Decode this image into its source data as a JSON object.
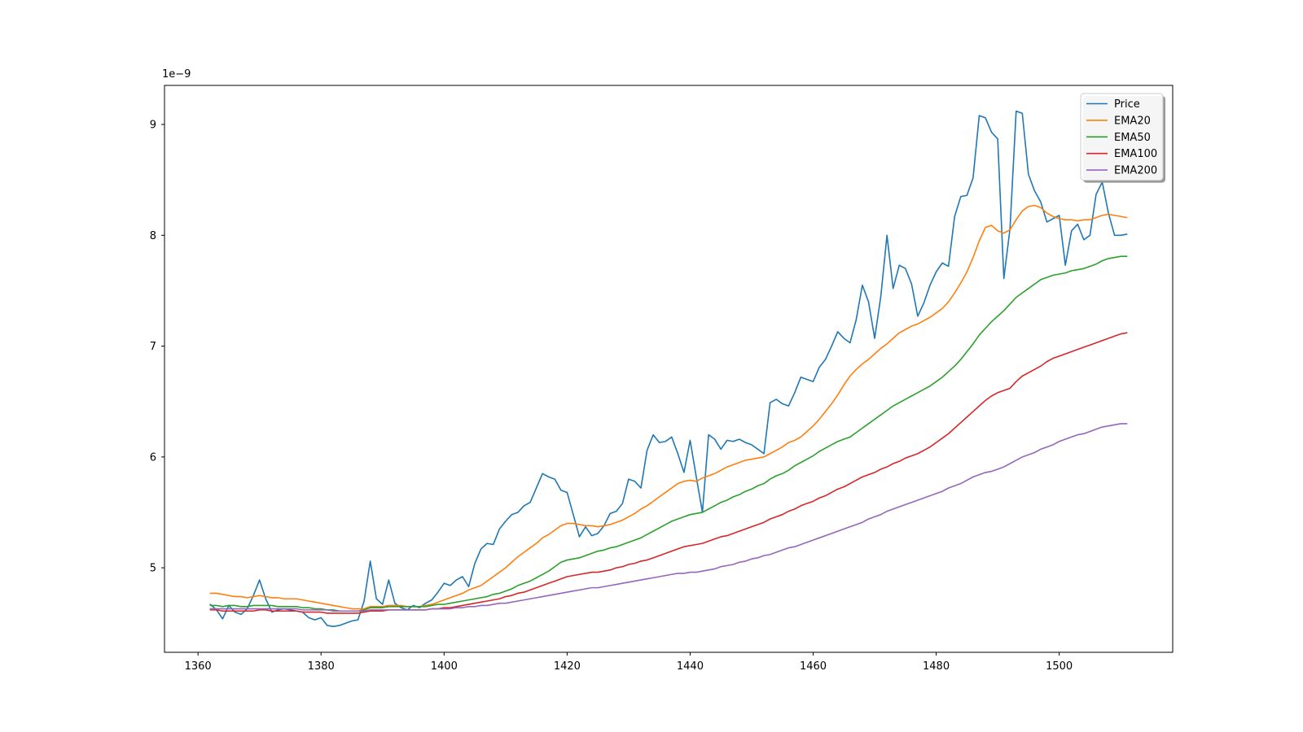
{
  "chart_data": {
    "type": "line",
    "title": "",
    "xlabel": "",
    "ylabel": "",
    "grid": false,
    "legend_position": "upper right",
    "y_offset_label": "1e−9",
    "y_unit_multiplier": 1e-09,
    "xlim": [
      1354.55,
      1518.45
    ],
    "ylim": [
      4.2375,
      9.3525
    ],
    "x_ticks": [
      1360,
      1380,
      1400,
      1420,
      1440,
      1460,
      1480,
      1500
    ],
    "y_ticks": [
      5,
      6,
      7,
      8,
      9
    ],
    "x_start": 1362,
    "x_step": 1,
    "x_end": 1511,
    "series": [
      {
        "name": "Price",
        "color": "#1f77b4",
        "values": [
          4.67,
          4.62,
          4.54,
          4.66,
          4.6,
          4.58,
          4.63,
          4.75,
          4.89,
          4.72,
          4.6,
          4.62,
          4.63,
          4.62,
          4.61,
          4.6,
          4.55,
          4.53,
          4.55,
          4.48,
          4.47,
          4.48,
          4.5,
          4.52,
          4.53,
          4.7,
          5.06,
          4.72,
          4.67,
          4.89,
          4.68,
          4.64,
          4.62,
          4.66,
          4.64,
          4.68,
          4.71,
          4.78,
          4.86,
          4.84,
          4.89,
          4.92,
          4.83,
          5.04,
          5.17,
          5.22,
          5.21,
          5.35,
          5.42,
          5.48,
          5.5,
          5.56,
          5.59,
          5.72,
          5.85,
          5.82,
          5.8,
          5.7,
          5.68,
          5.48,
          5.28,
          5.37,
          5.29,
          5.31,
          5.38,
          5.49,
          5.51,
          5.58,
          5.8,
          5.78,
          5.72,
          6.06,
          6.2,
          6.13,
          6.14,
          6.18,
          6.03,
          5.86,
          6.15,
          5.82,
          5.5,
          6.2,
          6.16,
          6.07,
          6.15,
          6.14,
          6.16,
          6.13,
          6.11,
          6.07,
          6.03,
          6.49,
          6.52,
          6.48,
          6.46,
          6.58,
          6.72,
          6.7,
          6.68,
          6.81,
          6.88,
          7.0,
          7.13,
          7.07,
          7.03,
          7.24,
          7.55,
          7.4,
          7.07,
          7.45,
          8.0,
          7.52,
          7.73,
          7.7,
          7.56,
          7.27,
          7.39,
          7.55,
          7.67,
          7.75,
          7.72,
          8.17,
          8.35,
          8.36,
          8.52,
          9.08,
          9.06,
          8.93,
          8.87,
          7.61,
          8.06,
          9.12,
          9.1,
          8.55,
          8.4,
          8.3,
          8.12,
          8.15,
          8.18,
          7.73,
          8.04,
          8.1,
          7.96,
          8.0,
          8.37,
          8.48,
          8.2,
          8.0,
          8.0,
          8.01
        ]
      },
      {
        "name": "EMA20",
        "color": "#ff7f0e",
        "values": [
          4.77,
          4.77,
          4.76,
          4.75,
          4.74,
          4.74,
          4.73,
          4.74,
          4.75,
          4.74,
          4.73,
          4.73,
          4.72,
          4.72,
          4.72,
          4.71,
          4.7,
          4.69,
          4.68,
          4.67,
          4.66,
          4.65,
          4.64,
          4.63,
          4.63,
          4.63,
          4.65,
          4.65,
          4.65,
          4.66,
          4.66,
          4.66,
          4.65,
          4.65,
          4.65,
          4.66,
          4.67,
          4.69,
          4.71,
          4.73,
          4.75,
          4.77,
          4.8,
          4.82,
          4.84,
          4.88,
          4.92,
          4.96,
          5.0,
          5.05,
          5.1,
          5.14,
          5.18,
          5.22,
          5.27,
          5.3,
          5.34,
          5.38,
          5.4,
          5.4,
          5.39,
          5.38,
          5.38,
          5.37,
          5.38,
          5.39,
          5.41,
          5.43,
          5.46,
          5.49,
          5.53,
          5.56,
          5.6,
          5.64,
          5.68,
          5.72,
          5.76,
          5.78,
          5.79,
          5.78,
          5.81,
          5.83,
          5.85,
          5.88,
          5.91,
          5.93,
          5.95,
          5.97,
          5.98,
          5.99,
          6.0,
          6.03,
          6.06,
          6.09,
          6.13,
          6.15,
          6.18,
          6.23,
          6.28,
          6.34,
          6.41,
          6.48,
          6.56,
          6.65,
          6.73,
          6.79,
          6.84,
          6.88,
          6.93,
          6.98,
          7.02,
          7.07,
          7.12,
          7.15,
          7.18,
          7.2,
          7.23,
          7.26,
          7.3,
          7.34,
          7.4,
          7.48,
          7.57,
          7.67,
          7.8,
          7.95,
          8.07,
          8.09,
          8.04,
          8.02,
          8.05,
          8.14,
          8.22,
          8.26,
          8.27,
          8.25,
          8.2,
          8.17,
          8.15,
          8.14,
          8.14,
          8.13,
          8.14,
          8.14,
          8.16,
          8.18,
          8.19,
          8.18,
          8.17,
          8.16
        ]
      },
      {
        "name": "EMA50",
        "color": "#2ca02c",
        "values": [
          4.66,
          4.66,
          4.65,
          4.66,
          4.66,
          4.65,
          4.65,
          4.66,
          4.66,
          4.66,
          4.66,
          4.65,
          4.65,
          4.65,
          4.65,
          4.64,
          4.64,
          4.63,
          4.63,
          4.62,
          4.62,
          4.61,
          4.61,
          4.61,
          4.61,
          4.62,
          4.64,
          4.64,
          4.64,
          4.65,
          4.65,
          4.65,
          4.65,
          4.65,
          4.65,
          4.65,
          4.66,
          4.67,
          4.67,
          4.68,
          4.69,
          4.7,
          4.71,
          4.72,
          4.73,
          4.74,
          4.76,
          4.77,
          4.79,
          4.81,
          4.84,
          4.86,
          4.88,
          4.91,
          4.94,
          4.97,
          5.01,
          5.05,
          5.07,
          5.08,
          5.09,
          5.11,
          5.13,
          5.15,
          5.16,
          5.18,
          5.19,
          5.21,
          5.23,
          5.25,
          5.27,
          5.3,
          5.33,
          5.36,
          5.39,
          5.42,
          5.44,
          5.46,
          5.48,
          5.49,
          5.5,
          5.53,
          5.56,
          5.59,
          5.61,
          5.64,
          5.66,
          5.69,
          5.71,
          5.74,
          5.76,
          5.8,
          5.83,
          5.85,
          5.88,
          5.92,
          5.95,
          5.98,
          6.01,
          6.05,
          6.08,
          6.11,
          6.14,
          6.16,
          6.18,
          6.22,
          6.26,
          6.3,
          6.34,
          6.38,
          6.42,
          6.46,
          6.49,
          6.52,
          6.55,
          6.58,
          6.61,
          6.64,
          6.68,
          6.72,
          6.77,
          6.82,
          6.88,
          6.95,
          7.02,
          7.1,
          7.16,
          7.22,
          7.27,
          7.32,
          7.38,
          7.44,
          7.48,
          7.52,
          7.56,
          7.6,
          7.62,
          7.64,
          7.65,
          7.66,
          7.68,
          7.69,
          7.7,
          7.72,
          7.74,
          7.77,
          7.79,
          7.8,
          7.81,
          7.81
        ]
      },
      {
        "name": "EMA100",
        "color": "#d62728",
        "values": [
          4.62,
          4.62,
          4.61,
          4.61,
          4.61,
          4.61,
          4.61,
          4.61,
          4.62,
          4.62,
          4.61,
          4.61,
          4.61,
          4.61,
          4.61,
          4.6,
          4.6,
          4.6,
          4.6,
          4.59,
          4.59,
          4.59,
          4.59,
          4.59,
          4.59,
          4.6,
          4.61,
          4.61,
          4.61,
          4.62,
          4.62,
          4.62,
          4.62,
          4.62,
          4.62,
          4.62,
          4.63,
          4.63,
          4.64,
          4.64,
          4.65,
          4.66,
          4.67,
          4.68,
          4.69,
          4.7,
          4.71,
          4.72,
          4.74,
          4.75,
          4.77,
          4.78,
          4.8,
          4.82,
          4.84,
          4.86,
          4.88,
          4.9,
          4.92,
          4.93,
          4.94,
          4.95,
          4.96,
          4.96,
          4.97,
          4.98,
          5.0,
          5.01,
          5.03,
          5.04,
          5.06,
          5.07,
          5.09,
          5.11,
          5.13,
          5.15,
          5.17,
          5.19,
          5.2,
          5.21,
          5.22,
          5.24,
          5.26,
          5.28,
          5.29,
          5.31,
          5.33,
          5.35,
          5.37,
          5.39,
          5.41,
          5.44,
          5.46,
          5.48,
          5.51,
          5.53,
          5.56,
          5.58,
          5.6,
          5.63,
          5.65,
          5.68,
          5.71,
          5.73,
          5.76,
          5.79,
          5.82,
          5.84,
          5.86,
          5.89,
          5.91,
          5.94,
          5.96,
          5.99,
          6.01,
          6.03,
          6.06,
          6.09,
          6.13,
          6.17,
          6.21,
          6.26,
          6.31,
          6.36,
          6.41,
          6.46,
          6.51,
          6.55,
          6.58,
          6.6,
          6.62,
          6.68,
          6.73,
          6.76,
          6.79,
          6.82,
          6.86,
          6.89,
          6.91,
          6.93,
          6.95,
          6.97,
          6.99,
          7.01,
          7.03,
          7.05,
          7.07,
          7.09,
          7.11,
          7.12
        ]
      },
      {
        "name": "EMA200",
        "color": "#9467bd",
        "values": [
          4.63,
          4.63,
          4.63,
          4.63,
          4.63,
          4.63,
          4.63,
          4.63,
          4.63,
          4.63,
          4.63,
          4.63,
          4.63,
          4.63,
          4.63,
          4.62,
          4.62,
          4.62,
          4.62,
          4.62,
          4.61,
          4.61,
          4.61,
          4.61,
          4.61,
          4.61,
          4.62,
          4.62,
          4.62,
          4.62,
          4.62,
          4.62,
          4.62,
          4.62,
          4.62,
          4.62,
          4.63,
          4.63,
          4.63,
          4.63,
          4.64,
          4.64,
          4.65,
          4.65,
          4.66,
          4.66,
          4.67,
          4.68,
          4.68,
          4.69,
          4.7,
          4.71,
          4.72,
          4.73,
          4.74,
          4.75,
          4.76,
          4.77,
          4.78,
          4.79,
          4.8,
          4.81,
          4.82,
          4.82,
          4.83,
          4.84,
          4.85,
          4.86,
          4.87,
          4.88,
          4.89,
          4.9,
          4.91,
          4.92,
          4.93,
          4.94,
          4.95,
          4.95,
          4.96,
          4.96,
          4.97,
          4.98,
          4.99,
          5.01,
          5.02,
          5.03,
          5.05,
          5.06,
          5.08,
          5.09,
          5.11,
          5.12,
          5.14,
          5.16,
          5.18,
          5.19,
          5.21,
          5.23,
          5.25,
          5.27,
          5.29,
          5.31,
          5.33,
          5.35,
          5.37,
          5.39,
          5.41,
          5.44,
          5.46,
          5.48,
          5.51,
          5.53,
          5.55,
          5.57,
          5.59,
          5.61,
          5.63,
          5.65,
          5.67,
          5.69,
          5.72,
          5.74,
          5.76,
          5.79,
          5.82,
          5.84,
          5.86,
          5.87,
          5.89,
          5.91,
          5.94,
          5.97,
          6.0,
          6.02,
          6.04,
          6.07,
          6.09,
          6.11,
          6.14,
          6.16,
          6.18,
          6.2,
          6.21,
          6.23,
          6.25,
          6.27,
          6.28,
          6.29,
          6.3,
          6.3
        ]
      }
    ]
  }
}
